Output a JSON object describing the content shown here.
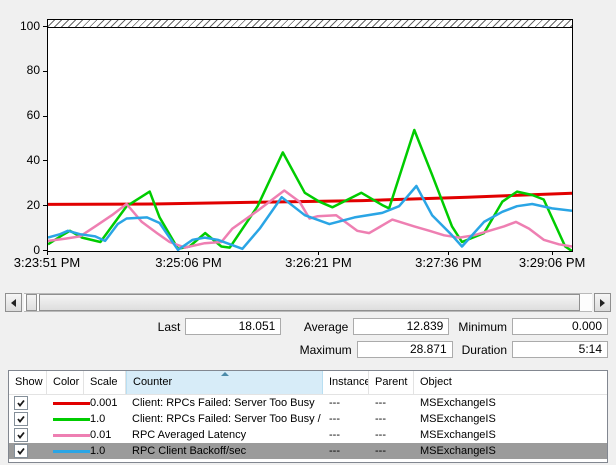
{
  "window": {
    "background": "#f0f0f0"
  },
  "chart_data": {
    "type": "line",
    "title": "",
    "xlabel": "",
    "ylabel": "",
    "ylim": [
      0,
      100
    ],
    "yticks": [
      0,
      20,
      40,
      60,
      80,
      100
    ],
    "xticks": [
      {
        "pos": 0.0,
        "label": "3:23:51 PM"
      },
      {
        "pos": 0.27,
        "label": "3:25:06 PM"
      },
      {
        "pos": 0.518,
        "label": "3:26:21 PM"
      },
      {
        "pos": 0.766,
        "label": "3:27:36 PM"
      },
      {
        "pos": 0.964,
        "label": "3:29:06 PM"
      }
    ],
    "grid": false,
    "legend_position": "table-below",
    "series": [
      {
        "name": "Client: RPCs Failed: Server Too Busy",
        "color": "#e10000",
        "scale": "0.001",
        "points": [
          [
            0,
            20.8
          ],
          [
            0.2,
            21
          ],
          [
            0.4,
            21.8
          ],
          [
            0.6,
            22.5
          ],
          [
            0.8,
            24
          ],
          [
            1,
            25.8
          ]
        ]
      },
      {
        "name": "Client: RPCs Failed: Server Too Busy / sec",
        "color": "#00cc00",
        "scale": "1.0",
        "points": [
          [
            0,
            3
          ],
          [
            0.027,
            7
          ],
          [
            0.042,
            9
          ],
          [
            0.065,
            6
          ],
          [
            0.1,
            4
          ],
          [
            0.15,
            20
          ],
          [
            0.194,
            26.5
          ],
          [
            0.213,
            15
          ],
          [
            0.248,
            1
          ],
          [
            0.27,
            2
          ],
          [
            0.3,
            8
          ],
          [
            0.331,
            2
          ],
          [
            0.347,
            1.5
          ],
          [
            0.4,
            20
          ],
          [
            0.448,
            44
          ],
          [
            0.49,
            26
          ],
          [
            0.518,
            22
          ],
          [
            0.543,
            19.5
          ],
          [
            0.598,
            26
          ],
          [
            0.638,
            20.5
          ],
          [
            0.651,
            19
          ],
          [
            0.699,
            54
          ],
          [
            0.733,
            34
          ],
          [
            0.771,
            11
          ],
          [
            0.79,
            4
          ],
          [
            0.832,
            8
          ],
          [
            0.867,
            22
          ],
          [
            0.895,
            26.5
          ],
          [
            0.924,
            25
          ],
          [
            0.946,
            23
          ],
          [
            0.987,
            2
          ],
          [
            1,
            0
          ]
        ]
      },
      {
        "name": "RPC Averaged Latency",
        "color": "#ee7fb2",
        "scale": "0.01",
        "points": [
          [
            0,
            4.5
          ],
          [
            0.032,
            5.5
          ],
          [
            0.061,
            6.5
          ],
          [
            0.09,
            11
          ],
          [
            0.122,
            16
          ],
          [
            0.15,
            21
          ],
          [
            0.179,
            13
          ],
          [
            0.208,
            8
          ],
          [
            0.232,
            4
          ],
          [
            0.261,
            1.5
          ],
          [
            0.299,
            3.5
          ],
          [
            0.331,
            4
          ],
          [
            0.352,
            10
          ],
          [
            0.4,
            18
          ],
          [
            0.451,
            27
          ],
          [
            0.48,
            22
          ],
          [
            0.499,
            14.5
          ],
          [
            0.514,
            15.5
          ],
          [
            0.55,
            16
          ],
          [
            0.59,
            9
          ],
          [
            0.613,
            8
          ],
          [
            0.657,
            14
          ],
          [
            0.699,
            11
          ],
          [
            0.728,
            9
          ],
          [
            0.756,
            7
          ],
          [
            0.785,
            6
          ],
          [
            0.813,
            7
          ],
          [
            0.842,
            9
          ],
          [
            0.87,
            11
          ],
          [
            0.893,
            13
          ],
          [
            0.918,
            10
          ],
          [
            0.946,
            5
          ],
          [
            0.975,
            3
          ],
          [
            1,
            2
          ]
        ]
      },
      {
        "name": "RPC Client Backoff/sec",
        "color": "#2aa5e5",
        "scale": "1.0",
        "points": [
          [
            0,
            6
          ],
          [
            0.023,
            7.5
          ],
          [
            0.038,
            9
          ],
          [
            0.061,
            7.5
          ],
          [
            0.09,
            6.5
          ],
          [
            0.109,
            4.5
          ],
          [
            0.133,
            12
          ],
          [
            0.15,
            14.5
          ],
          [
            0.189,
            15
          ],
          [
            0.213,
            12.5
          ],
          [
            0.248,
            0.5
          ],
          [
            0.276,
            5
          ],
          [
            0.299,
            6
          ],
          [
            0.324,
            5
          ],
          [
            0.371,
            1
          ],
          [
            0.404,
            10
          ],
          [
            0.446,
            24
          ],
          [
            0.49,
            16
          ],
          [
            0.537,
            12
          ],
          [
            0.585,
            15
          ],
          [
            0.638,
            17
          ],
          [
            0.67,
            20
          ],
          [
            0.703,
            29
          ],
          [
            0.733,
            16
          ],
          [
            0.771,
            7
          ],
          [
            0.79,
            2
          ],
          [
            0.832,
            13
          ],
          [
            0.867,
            17.5
          ],
          [
            0.895,
            20
          ],
          [
            0.924,
            21
          ],
          [
            0.962,
            19
          ],
          [
            1,
            18
          ]
        ]
      }
    ]
  },
  "stats": {
    "last": {
      "label": "Last",
      "value": "18.051"
    },
    "average": {
      "label": "Average",
      "value": "12.839"
    },
    "minimum": {
      "label": "Minimum",
      "value": "0.000"
    },
    "maximum": {
      "label": "Maximum",
      "value": "28.871"
    },
    "duration": {
      "label": "Duration",
      "value": "5:14"
    }
  },
  "legend": {
    "headers": [
      "Show",
      "Color",
      "Scale",
      "Counter",
      "Instance",
      "Parent",
      "Object"
    ],
    "sort": {
      "column": "Counter",
      "direction": "ascending"
    },
    "selected_row_color": "#9b9b9b",
    "sorted_header_color": "#d7ecf8",
    "rows": [
      {
        "show": true,
        "color": "#e10000",
        "scale": "0.001",
        "counter": "Client: RPCs Failed: Server Too Busy",
        "instance": "---",
        "parent": "---",
        "object": "MSExchangeIS",
        "selected": false
      },
      {
        "show": true,
        "color": "#00cc00",
        "scale": "1.0",
        "counter": "Client: RPCs Failed: Server Too Busy / sec",
        "instance": "---",
        "parent": "---",
        "object": "MSExchangeIS",
        "selected": false
      },
      {
        "show": true,
        "color": "#ee7fb2",
        "scale": "0.01",
        "counter": "RPC Averaged Latency",
        "instance": "---",
        "parent": "---",
        "object": "MSExchangeIS",
        "selected": false
      },
      {
        "show": true,
        "color": "#2aa5e5",
        "scale": "1.0",
        "counter": "RPC Client Backoff/sec",
        "instance": "---",
        "parent": "---",
        "object": "MSExchangeIS",
        "selected": true
      }
    ]
  }
}
